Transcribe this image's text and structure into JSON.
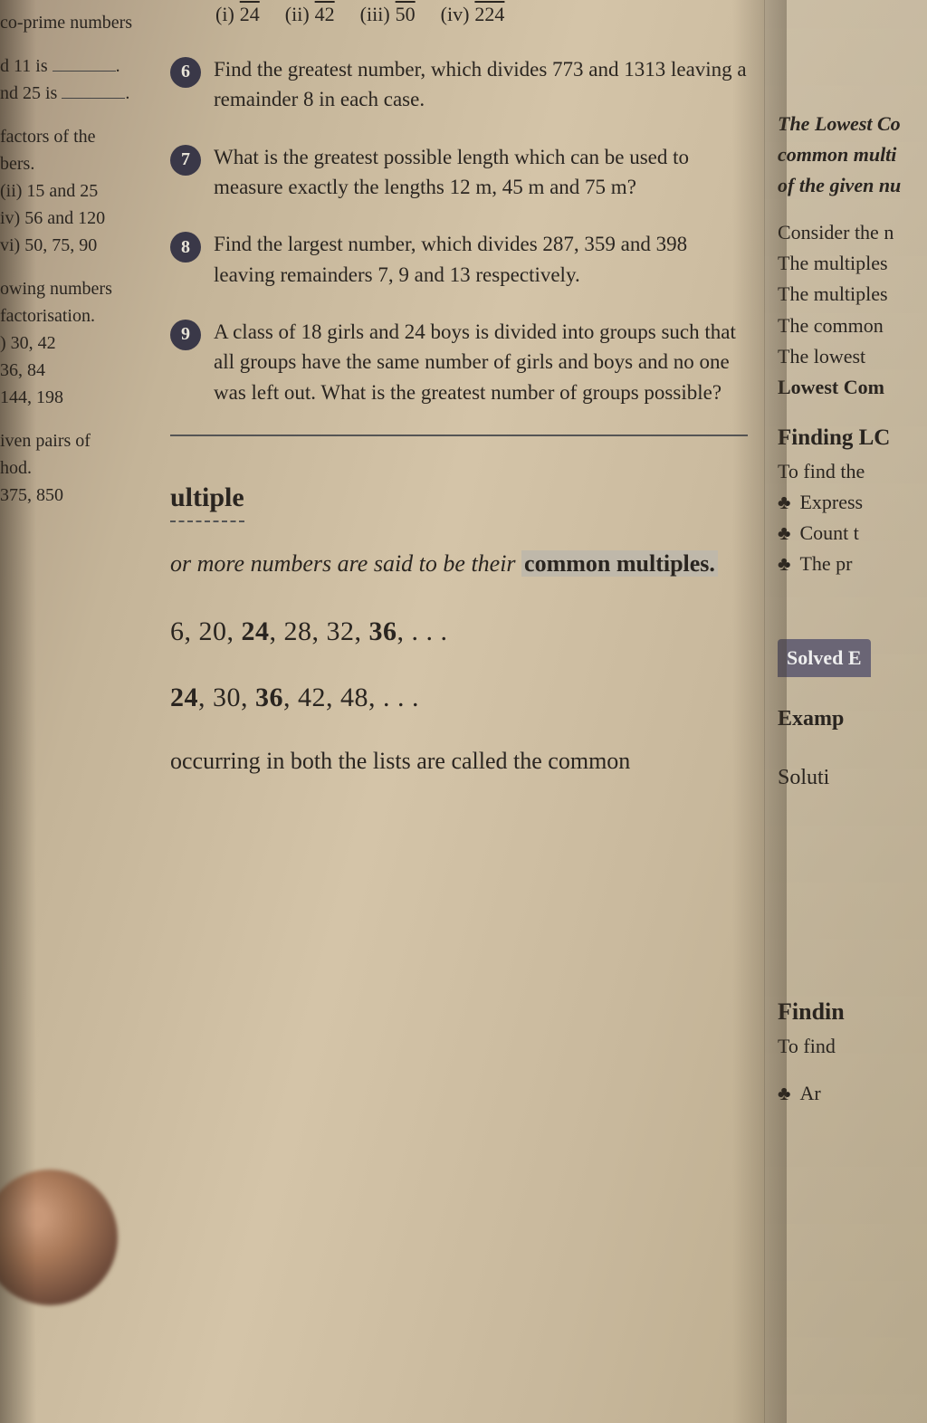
{
  "left": {
    "l1": "co-prime numbers",
    "l2a": "d 11 is ",
    "l2b": "nd 25 is ",
    "l3": "factors of the",
    "l4": "bers.",
    "l5": "(ii)  15 and 25",
    "l6": "iv)  56 and 120",
    "l7": "vi)  50, 75, 90",
    "l8": "owing numbers",
    "l9": "factorisation.",
    "l10": ")  30, 42",
    "l11": "   36, 84",
    "l12": "   144, 198",
    "l13": "iven pairs of",
    "l14": "hod.",
    "l15": "  375, 850"
  },
  "fracs": {
    "a": "(i)",
    "av": "24",
    "b": "(ii)",
    "bv": "42",
    "c": "(iii)",
    "cv": "50",
    "d": "(iv)",
    "dv": "224"
  },
  "q6": {
    "n": "6",
    "t": "Find the greatest number, which divides 773 and 1313 leaving a remainder 8 in each case."
  },
  "q7": {
    "n": "7",
    "t": "What is the greatest possible length which can be used to measure exactly the lengths 12 m, 45 m and 75 m?"
  },
  "q8": {
    "n": "8",
    "t": "Find the largest number, which divides 287, 359 and 398 leaving remainders 7, 9 and 13 respectively."
  },
  "q9": {
    "n": "9",
    "t": "A class of 18 girls and 24 boys is divided into groups such that all groups have the same number of girls and boys and no one was left out. What is the greatest number of groups possible?"
  },
  "right": {
    "r1": "The Lowest Co",
    "r2": "common multi",
    "r3": "of the given nu",
    "r4": "Consider the n",
    "r5": "The multiples",
    "r6": "The multiples",
    "r7": "The common",
    "r8": "The lowest",
    "r9": "Lowest Com",
    "r10": "Finding LC",
    "r11": "To find the",
    "r12": "Express",
    "r13": "Count t",
    "r14": "The pr",
    "solved": "Solved E",
    "ex": "Examp",
    "sol": "Soluti",
    "fin": "Findin",
    "tof": "To find",
    "ar": "Ar"
  },
  "lower": {
    "title": "ultiple",
    "line1a": "or more numbers are said to be their ",
    "line1b": "common multiples.",
    "seq1": "6, 20, 24, 28, 32, 36, . . .",
    "seq1_hi": [
      2,
      5
    ],
    "seq2": "24, 30, 36, 42, 48, . . .",
    "seq2_hi": [
      0,
      2
    ],
    "line2": "occurring in both the lists are called the common"
  }
}
